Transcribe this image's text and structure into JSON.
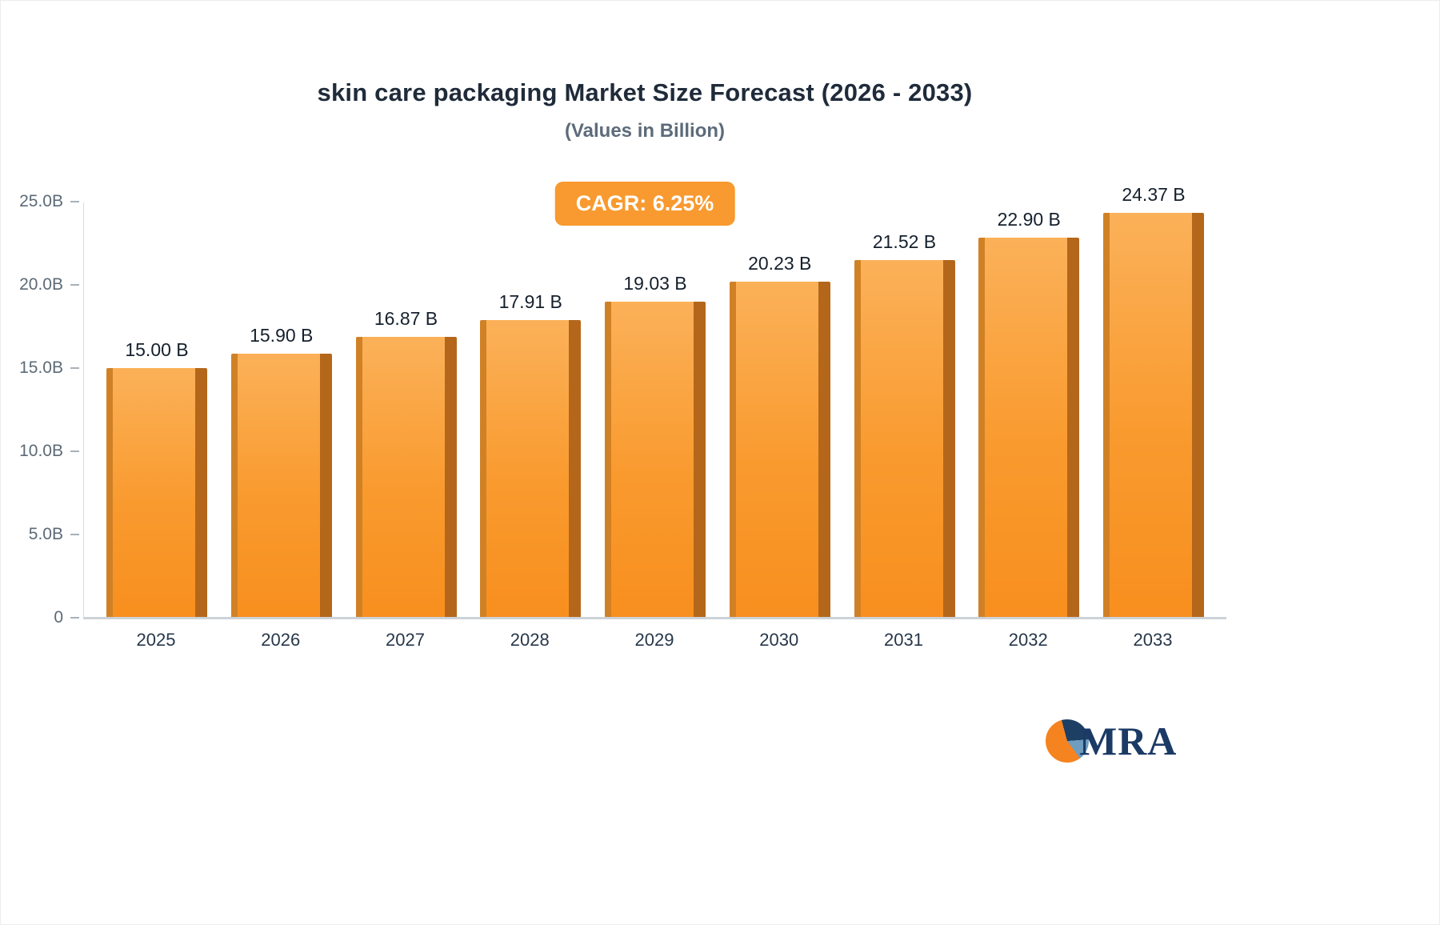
{
  "header": {
    "title": "skin care packaging Market Size Forecast (2026 - 2033)",
    "subtitle": "(Values in Billion)"
  },
  "badge": {
    "label": "CAGR: 6.25%",
    "bg_color": "#f89a2f"
  },
  "chart_data": {
    "type": "bar",
    "title": "skin care packaging Market Size Forecast (2026 - 2033)",
    "subtitle": "(Values in Billion)",
    "categories": [
      "2025",
      "2026",
      "2027",
      "2028",
      "2029",
      "2030",
      "2031",
      "2032",
      "2033"
    ],
    "values": [
      15.0,
      15.9,
      16.87,
      17.91,
      19.03,
      20.23,
      21.52,
      22.9,
      24.37
    ],
    "value_labels": [
      "15.00 B",
      "15.90 B",
      "16.87 B",
      "17.91 B",
      "19.03 B",
      "20.23 B",
      "21.52 B",
      "22.90 B",
      "24.37 B"
    ],
    "xlabel": "",
    "ylabel": "",
    "ylim": [
      0,
      25
    ],
    "yticks": [
      "25.0B",
      "20.0B",
      "15.0B",
      "10.0B",
      "5.0B",
      "0"
    ],
    "grid": false,
    "legend": false,
    "bar_color_top": "#fbb159",
    "bar_color_bottom": "#f88f1f",
    "bar_side_color": "#b4671a",
    "cagr_annotation": "CAGR: 6.25%"
  },
  "logo": {
    "text": "MRA",
    "icon": "pie-circle-icon",
    "colors": {
      "navy": "#1d3f63",
      "light_blue": "#6e9dc0",
      "orange": "#f5831f"
    }
  }
}
